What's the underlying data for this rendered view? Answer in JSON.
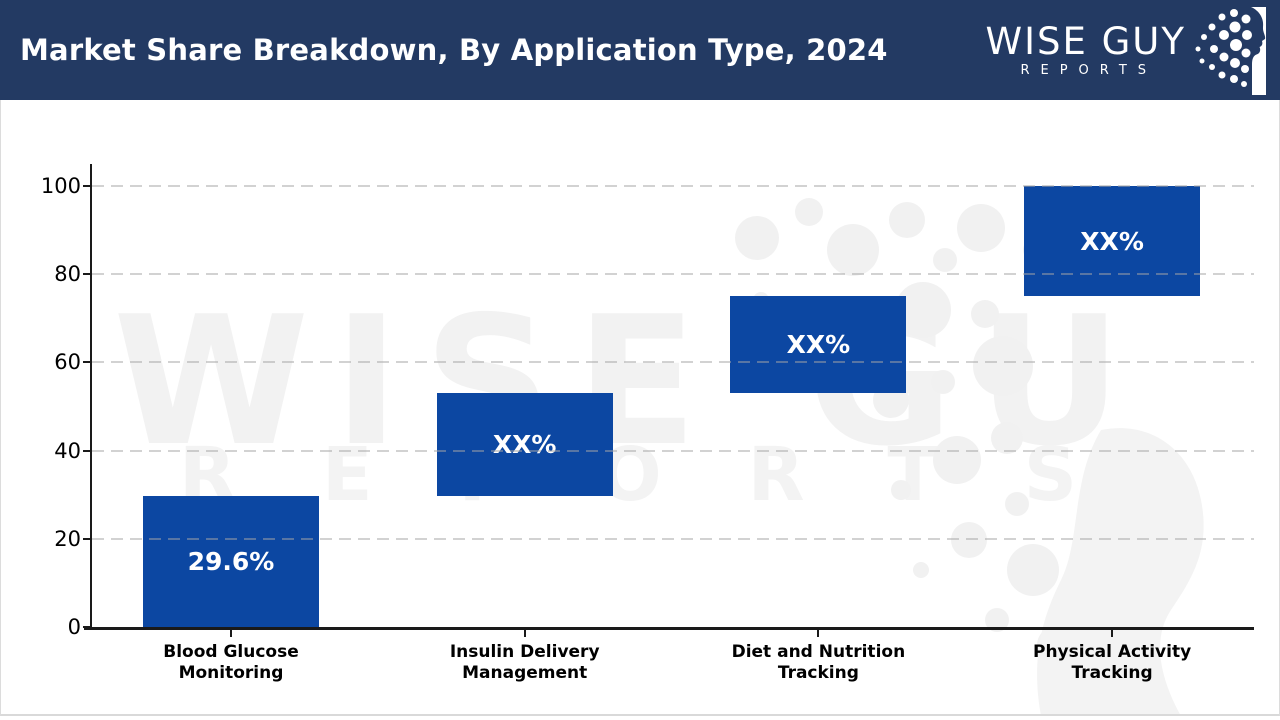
{
  "header": {
    "logo_line1": "WISE GUY",
    "logo_line2": "REPORTS"
  },
  "watermark": {
    "line1": "WISE GU",
    "line2": "REPORTS"
  },
  "colors": {
    "header_bg": "#233A63",
    "bar_blue": "#0C47A2",
    "axis": "#1A1A1A",
    "gridline": "#D9D9D9",
    "bar_label": "#FFFFFF"
  },
  "chart_data": {
    "type": "bar",
    "subtype": "waterfall",
    "title": "Market Share Breakdown, By Application Type, 2024",
    "categories": [
      [
        "Blood Glucose",
        "Monitoring"
      ],
      [
        "Insulin Delivery",
        "Management"
      ],
      [
        "Diet and Nutrition",
        "Tracking"
      ],
      [
        "Physical Activity",
        "Tracking"
      ]
    ],
    "segments": [
      {
        "label": "29.6%",
        "start": 0,
        "end": 29.6
      },
      {
        "label": "XX%",
        "start": 29.6,
        "end": 53
      },
      {
        "label": "XX%",
        "start": 53,
        "end": 75
      },
      {
        "label": "XX%",
        "start": 75,
        "end": 100
      }
    ],
    "yticks": [
      0,
      20,
      40,
      60,
      80,
      100
    ],
    "ylim": [
      0,
      105
    ],
    "xlabel": "",
    "ylabel": "",
    "grid": "dashed-horizontal",
    "legend": "none",
    "bar_color": "#0C47A2",
    "bar_label_color": "#FFFFFF"
  }
}
